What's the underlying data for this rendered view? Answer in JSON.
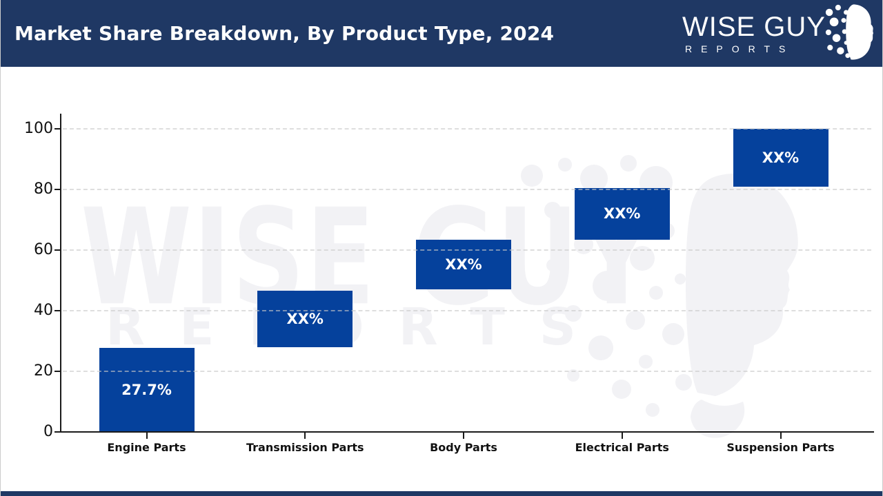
{
  "header": {
    "title": "Market Share Breakdown, By Product Type, 2024",
    "logo": {
      "line1": "WISE GUY",
      "line2": "REPORTS"
    }
  },
  "watermark": {
    "line1": "WISE GUY",
    "line2": "REPORTS"
  },
  "chart_data": {
    "type": "bar",
    "subtype": "waterfall",
    "title": "Market Share Breakdown, By Product Type, 2024",
    "categories": [
      "Engine Parts",
      "Transmission Parts",
      "Body Parts",
      "Electrical Parts",
      "Suspension Parts"
    ],
    "segments": [
      {
        "category": "Engine Parts",
        "start": 0,
        "end": 27.7,
        "label": "27.7%"
      },
      {
        "category": "Transmission Parts",
        "start": 28,
        "end": 46.5,
        "label": "XX%"
      },
      {
        "category": "Body Parts",
        "start": 47,
        "end": 63.5,
        "label": "XX%"
      },
      {
        "category": "Electrical Parts",
        "start": 63.5,
        "end": 80.5,
        "label": "XX%"
      },
      {
        "category": "Suspension Parts",
        "start": 81,
        "end": 100,
        "label": "XX%"
      }
    ],
    "xlabel": "",
    "ylabel": "",
    "ylim": [
      0,
      100
    ],
    "yticks": [
      0,
      20,
      40,
      60,
      80,
      100
    ],
    "grid": "horizontal dashed",
    "legend": "none",
    "bar_color": "#05419C",
    "bar_label_color": "#FFFFFF"
  },
  "colors": {
    "header_bg": "#1F3864",
    "footer_bg": "#1F3864",
    "bar": "#05419C",
    "grid": "#D9D9D9",
    "axis": "#1A1A1A",
    "watermark": "#F2F2F5"
  }
}
